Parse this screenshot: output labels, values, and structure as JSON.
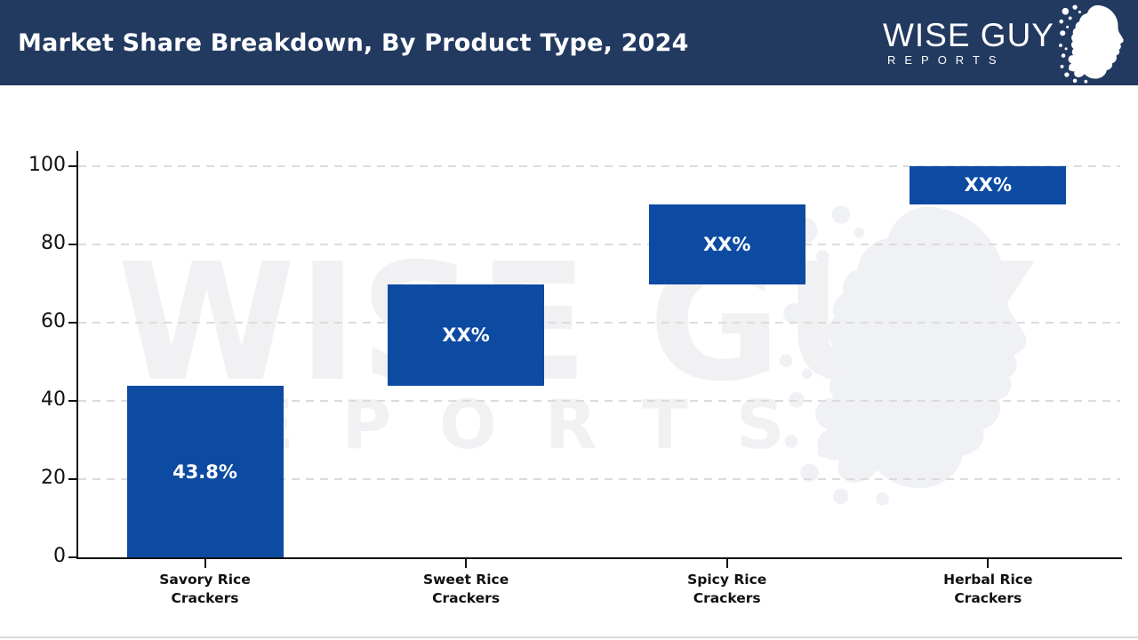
{
  "header": {
    "title": "Market Share Breakdown, By Product Type, 2024",
    "brand": {
      "line1": "WISE GUY",
      "line2": "REPORTS"
    }
  },
  "watermark": {
    "line1": "WISE GUY",
    "line2": "REPORTS"
  },
  "colors": {
    "header_bg": "#223960",
    "bar": "#0d4ba3",
    "bar_label": "#ffffff",
    "grid": "#dcdcdc",
    "axis": "#111111",
    "watermark": "#f1f1f4"
  },
  "chart_data": {
    "type": "bar",
    "subtype": "waterfall",
    "title": "Market Share Breakdown, By Product Type, 2024",
    "categories": [
      "Savory Rice\nCrackers",
      "Sweet Rice\nCrackers",
      "Spicy Rice\nCrackers",
      "Herbal Rice\nCrackers"
    ],
    "segments": [
      {
        "label": "43.8%",
        "start": 0,
        "end": 43.8
      },
      {
        "label": "XX%",
        "start": 43.8,
        "end": 69.7
      },
      {
        "label": "XX%",
        "start": 69.7,
        "end": 90.3
      },
      {
        "label": "XX%",
        "start": 90.3,
        "end": 100
      }
    ],
    "yticks": [
      0,
      20,
      40,
      60,
      80,
      100
    ],
    "ylim": [
      0,
      100
    ],
    "xlabel": "",
    "ylabel": "",
    "grid": "horizontal-dashed",
    "legend": "none"
  }
}
